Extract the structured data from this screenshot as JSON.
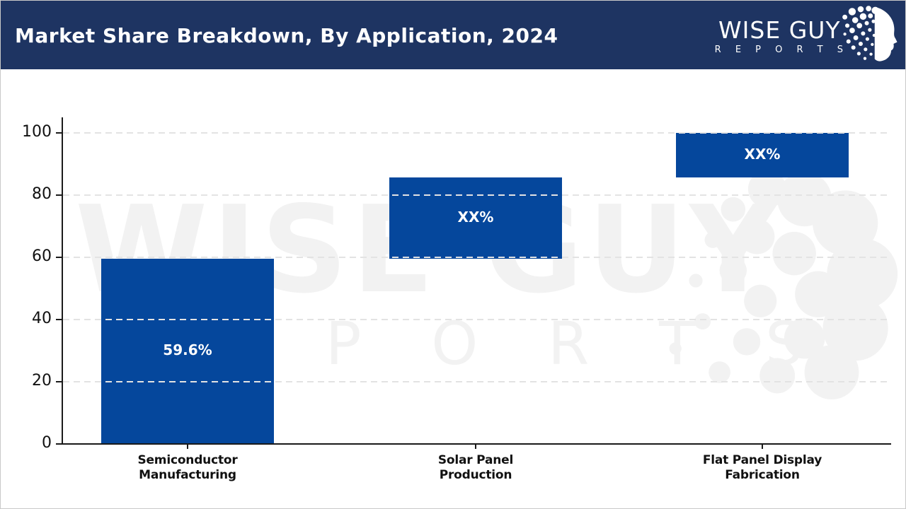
{
  "header": {
    "title": "Market Share Breakdown, By Application, 2024",
    "logo": {
      "name": "WISE GUY",
      "subtitle": "R E P O R T S"
    }
  },
  "watermark": {
    "line1": "WISE GUY",
    "line2": "R E P O R T S"
  },
  "colors": {
    "header_bg": "#1e3462",
    "bar": "#05479c",
    "grid": "#e3e3e3",
    "axis": "#1a1a1a",
    "value_label": "#ffffff",
    "watermark": "#f2f2f2"
  },
  "chart_data": {
    "type": "bar",
    "subtype": "floating-waterfall",
    "title": "Market Share Breakdown, By Application, 2024",
    "categories": [
      "Semiconductor Manufacturing",
      "Solar Panel Production",
      "Flat Panel Display Fabrication"
    ],
    "bars": [
      {
        "category_line1": "Semiconductor",
        "category_line2": "Manufacturing",
        "start": 0,
        "end": 59.6,
        "label": "59.6%"
      },
      {
        "category_line1": "Solar Panel",
        "category_line2": "Production",
        "start": 59.6,
        "end": 85.6,
        "label": "XX%"
      },
      {
        "category_line1": "Flat Panel Display",
        "category_line2": "Fabrication",
        "start": 85.6,
        "end": 100,
        "label": "XX%"
      }
    ],
    "xlabel": "",
    "ylabel": "",
    "ylim": [
      0,
      100
    ],
    "yticks": [
      0,
      20,
      40,
      60,
      80,
      100
    ],
    "grid": "horizontal-dashed",
    "legend": "none"
  }
}
